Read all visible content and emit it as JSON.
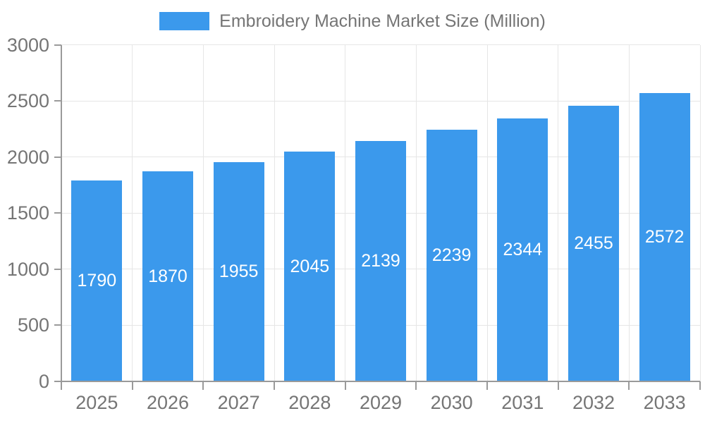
{
  "chart_data": {
    "type": "bar",
    "title": "Embroidery Machine Market Size (Million)",
    "categories": [
      "2025",
      "2026",
      "2027",
      "2028",
      "2029",
      "2030",
      "2031",
      "2032",
      "2033"
    ],
    "values": [
      1790,
      1870,
      1955,
      2045,
      2139,
      2239,
      2344,
      2455,
      2572
    ],
    "xlabel": "",
    "ylabel": "",
    "ylim": [
      0,
      3000
    ],
    "yticks": [
      0,
      500,
      1000,
      1500,
      2000,
      2500,
      3000
    ],
    "grid": true,
    "legend_position": "top",
    "bar_color": "#3B99EC",
    "value_label_color": "#FFFFFF",
    "grid_color": "#E6E6E6",
    "axis_color": "#9A9A9A",
    "text_color": "#757575"
  }
}
